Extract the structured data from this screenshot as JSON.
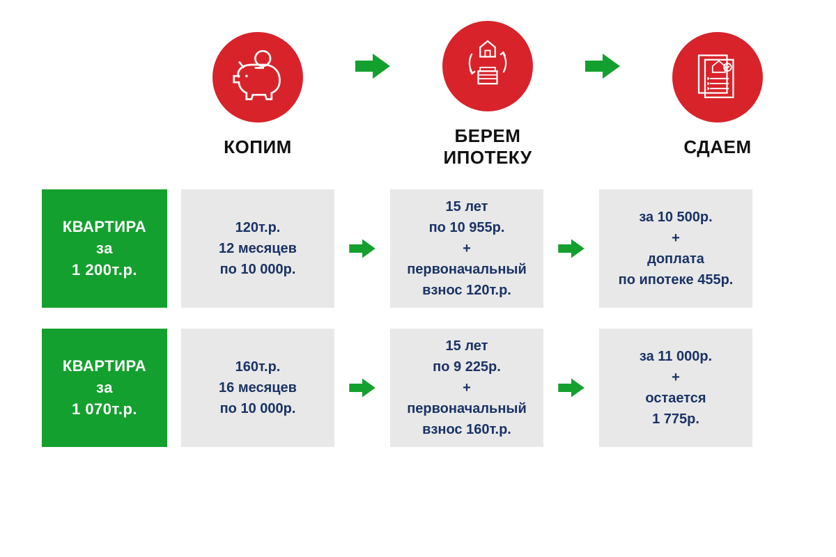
{
  "colors": {
    "circle_bg": "#d8232a",
    "icon_stroke": "#ffffff",
    "arrow_fill": "#14a02e",
    "title_color": "#111111",
    "label_bg": "#14a02e",
    "label_text": "#ffffff",
    "cell_bg": "#e8e8e8",
    "cell_text": "#1a3366"
  },
  "typography": {
    "title_fontsize": 26,
    "label_fontsize": 22,
    "cell_fontsize": 20
  },
  "header": {
    "steps": [
      {
        "title": "КОПИМ",
        "icon": "piggy"
      },
      {
        "title": "БЕРЕМ\nИПОТЕКУ",
        "icon": "house-loan"
      },
      {
        "title": "СДАЕМ",
        "icon": "docs"
      }
    ]
  },
  "rows": [
    {
      "label": {
        "line1": "КВАРТИРА",
        "line2": "за",
        "line3": "1 200т.р."
      },
      "cells": [
        [
          "120т.р.",
          "12 месяцев",
          "по 10 000р."
        ],
        [
          "15 лет",
          "по 10 955р.",
          "+",
          "первоначальный",
          "взнос 120т.р."
        ],
        [
          "за 10 500р.",
          "+",
          "доплата",
          "по ипотеке  455р."
        ]
      ]
    },
    {
      "label": {
        "line1": "КВАРТИРА",
        "line2": "за",
        "line3": "1 070т.р."
      },
      "cells": [
        [
          "160т.р.",
          "16 месяцев",
          "по 10 000р."
        ],
        [
          "15 лет",
          "по 9 225р.",
          "+",
          "первоначальный",
          "взнос 160т.р."
        ],
        [
          "за 11 000р.",
          "+",
          "остается",
          "1 775р."
        ]
      ]
    }
  ]
}
